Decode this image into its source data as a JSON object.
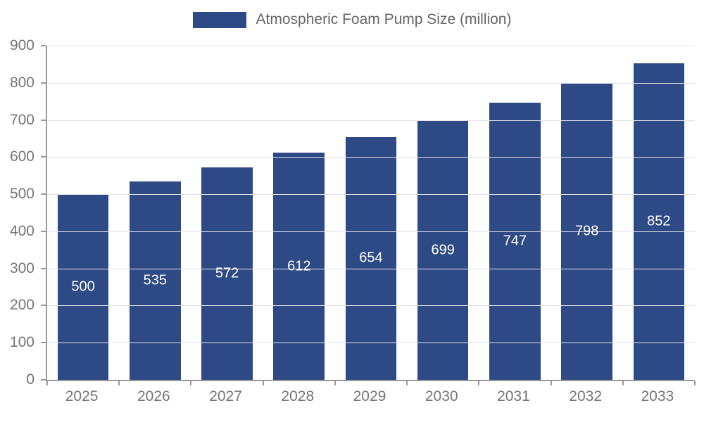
{
  "chart_data": {
    "type": "bar",
    "title": "Atmospheric Foam Pump Size (million)",
    "categories": [
      "2025",
      "2026",
      "2027",
      "2028",
      "2029",
      "2030",
      "2031",
      "2032",
      "2033"
    ],
    "values": [
      500,
      535,
      572,
      612,
      654,
      699,
      747,
      798,
      852
    ],
    "xlabel": "",
    "ylabel": "",
    "ylim": [
      0,
      900
    ],
    "yticks": [
      0,
      100,
      200,
      300,
      400,
      500,
      600,
      700,
      800,
      900
    ],
    "grid": true,
    "legend_position": "top",
    "bar_color": "#2e4a86",
    "value_label_color": "#ffffff",
    "axis_label_color": "#757575",
    "legend_text_color": "#666666",
    "gridline_color": "#e3e3e3",
    "axis_line_color": "#999999"
  }
}
